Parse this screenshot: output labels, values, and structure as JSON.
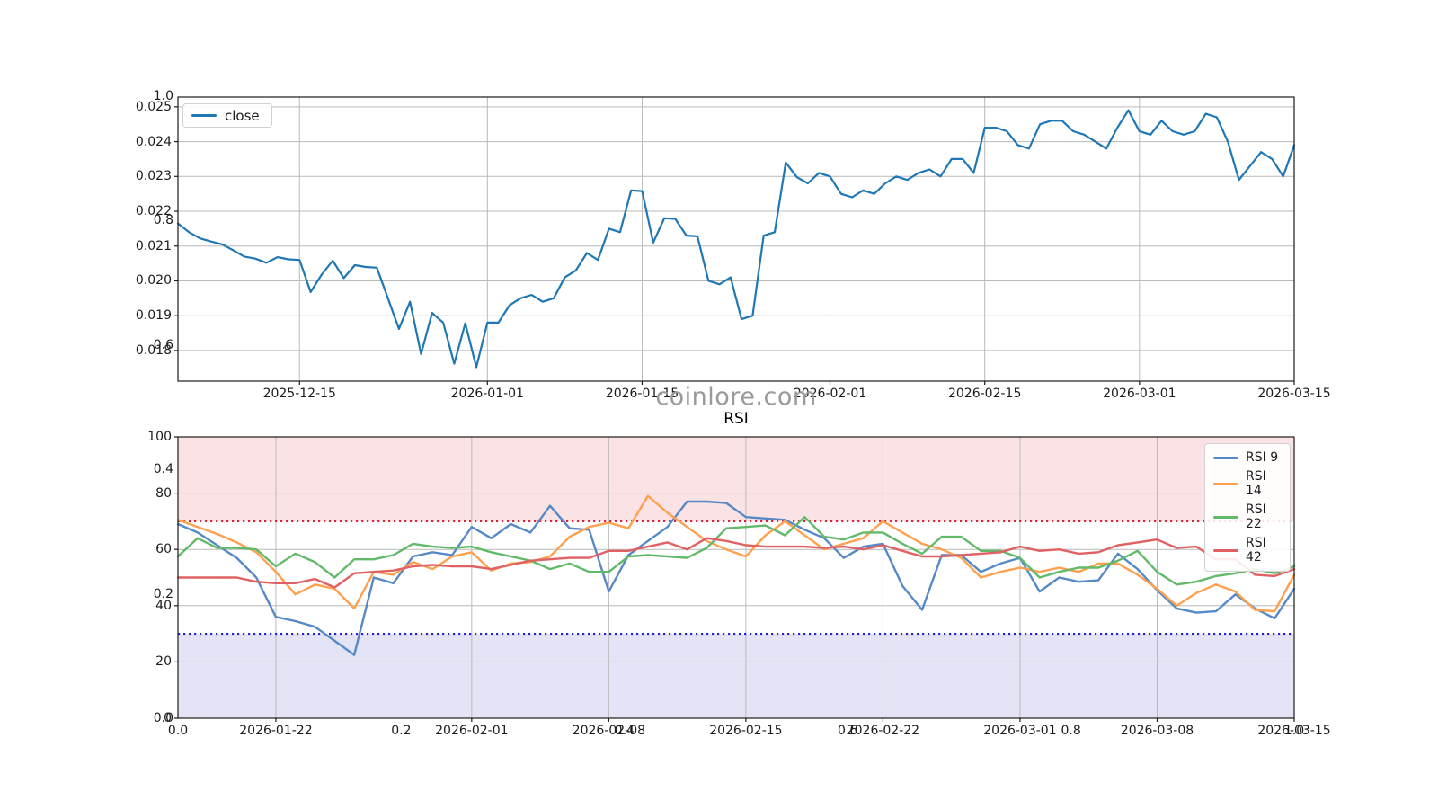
{
  "watermark": "coinlore.com",
  "phantom_axis": {
    "xtick_labels": [
      "0.0",
      "0.2",
      "0.4",
      "0.6",
      "0.8",
      "1.0"
    ],
    "ytick_labels": [
      "1.0",
      "0.8",
      "0.6",
      "0.4",
      "0.2",
      "0.0"
    ]
  },
  "chart_data": [
    {
      "type": "line",
      "name": "price-panel",
      "title": "",
      "start_date": "2025-12-04",
      "frequency": "daily",
      "grid": true,
      "legend_position": "upper left",
      "ylim": [
        0.01712,
        0.02528
      ],
      "ytick_values": [
        0.018,
        0.019,
        0.02,
        0.021,
        0.022,
        0.023,
        0.024,
        0.025
      ],
      "ytick_labels": [
        "0.018",
        "0.019",
        "0.020",
        "0.021",
        "0.022",
        "0.023",
        "0.024",
        "0.025"
      ],
      "xticks": [
        {
          "label": "2025-12-15",
          "i": 11
        },
        {
          "label": "2026-01-01",
          "i": 28
        },
        {
          "label": "2026-01-15",
          "i": 42
        },
        {
          "label": "2026-02-01",
          "i": 59
        },
        {
          "label": "2026-02-15",
          "i": 73
        },
        {
          "label": "2026-03-01",
          "i": 87
        },
        {
          "label": "2026-03-15",
          "i": 101
        }
      ],
      "series": [
        {
          "name": "close",
          "color": "#1f77b4",
          "width": 2.2,
          "values": [
            0.02165,
            0.0214,
            0.02122,
            0.02113,
            0.02105,
            0.02088,
            0.0207,
            0.02064,
            0.02052,
            0.02068,
            0.02062,
            0.0206,
            0.01968,
            0.02018,
            0.02058,
            0.02008,
            0.02045,
            0.0204,
            0.02038,
            0.0195,
            0.01862,
            0.0194,
            0.0179,
            0.01908,
            0.0188,
            0.01762,
            0.01878,
            0.01752,
            0.0188,
            0.0188,
            0.0193,
            0.0195,
            0.0196,
            0.0194,
            0.0195,
            0.0201,
            0.0203,
            0.0208,
            0.0206,
            0.0215,
            0.0214,
            0.0226,
            0.02258,
            0.0211,
            0.0218,
            0.02178,
            0.0213,
            0.02128,
            0.02,
            0.0199,
            0.0201,
            0.0189,
            0.019,
            0.0213,
            0.0214,
            0.0234,
            0.02298,
            0.0228,
            0.0231,
            0.023,
            0.0225,
            0.0224,
            0.0226,
            0.0225,
            0.0228,
            0.023,
            0.0229,
            0.0231,
            0.0232,
            0.023,
            0.0235,
            0.0235,
            0.0231,
            0.0244,
            0.0244,
            0.0243,
            0.0239,
            0.0238,
            0.0245,
            0.0246,
            0.0246,
            0.0243,
            0.0242,
            0.024,
            0.0238,
            0.0244,
            0.0249,
            0.0243,
            0.0242,
            0.0246,
            0.0243,
            0.0242,
            0.0243,
            0.0248,
            0.0247,
            0.024,
            0.0229,
            0.0233,
            0.0237,
            0.0235,
            0.023,
            0.0239
          ]
        }
      ]
    },
    {
      "type": "line",
      "name": "rsi-panel",
      "title": "RSI",
      "start_date": "2026-01-17",
      "frequency": "daily",
      "grid": true,
      "legend_position": "upper right",
      "ylim": [
        0,
        100
      ],
      "ytick_values": [
        0,
        20,
        40,
        60,
        80,
        100
      ],
      "ytick_labels": [
        "0",
        "20",
        "40",
        "60",
        "80",
        "100"
      ],
      "xticks": [
        {
          "label": "2026-01-22",
          "i": 5
        },
        {
          "label": "2026-02-01",
          "i": 15
        },
        {
          "label": "2026-02-08",
          "i": 22
        },
        {
          "label": "2026-02-15",
          "i": 29
        },
        {
          "label": "2026-02-22",
          "i": 36
        },
        {
          "label": "2026-03-01",
          "i": 43
        },
        {
          "label": "2026-03-08",
          "i": 50
        },
        {
          "label": "2026-03-15",
          "i": 57
        }
      ],
      "bands": [
        {
          "name": "overbought-zone",
          "from": 70,
          "to": 100,
          "color": "#fbe2e4"
        },
        {
          "name": "oversold-zone",
          "from": 0,
          "to": 30,
          "color": "#e5e4f6"
        }
      ],
      "hlines": [
        {
          "name": "overbought-line",
          "level": 70,
          "color": "#d8253c"
        },
        {
          "name": "oversold-line",
          "level": 30,
          "color": "#2323cc"
        }
      ],
      "series": [
        {
          "name": "RSI 9",
          "color": "#5789c7",
          "width": 2.4,
          "values": [
            69,
            66,
            61.5,
            57,
            50,
            36,
            34.5,
            32.5,
            27.5,
            22.5,
            50,
            48,
            57.5,
            59,
            58,
            68,
            64,
            69,
            66,
            75.5,
            67.5,
            67,
            45,
            58,
            63,
            68,
            77,
            77,
            76.5,
            71.5,
            71,
            70.5,
            67,
            64,
            57,
            61,
            62,
            47,
            38.5,
            58,
            58,
            52,
            55,
            57,
            45,
            50,
            48.5,
            49,
            58.5,
            53,
            45.5,
            39,
            37.5,
            38,
            44,
            39,
            35.5,
            46
          ]
        },
        {
          "name": "RSI 14",
          "color": "#ffa04e",
          "width": 2.4,
          "values": [
            70.5,
            68,
            65.5,
            62.5,
            59,
            52,
            44,
            47.5,
            46,
            39,
            52,
            51,
            55.5,
            53,
            57.5,
            59,
            52.5,
            55,
            55.5,
            57.5,
            64.5,
            68,
            69.5,
            67.5,
            79,
            73,
            68,
            63,
            60,
            57.5,
            65,
            70,
            65,
            60,
            62,
            64,
            70,
            66,
            62,
            60,
            57,
            50,
            52,
            53.5,
            52,
            53.5,
            52,
            55,
            55,
            51,
            46,
            40,
            44.5,
            47.5,
            45,
            38.5,
            38,
            51
          ]
        },
        {
          "name": "RSI 22",
          "color": "#62b96a",
          "width": 2.4,
          "values": [
            57.5,
            64,
            60.5,
            60.5,
            60,
            54,
            58.5,
            55.5,
            50,
            56.5,
            56.5,
            58,
            62,
            61,
            60.5,
            61,
            59,
            57.5,
            56,
            53,
            55,
            52,
            52,
            57.5,
            58,
            57.5,
            57,
            60.5,
            67.5,
            68,
            68.5,
            65,
            71.5,
            64.5,
            63.5,
            66,
            66,
            62,
            58.5,
            64.5,
            64.5,
            59.5,
            59.5,
            57,
            50,
            52,
            53.5,
            53.5,
            56,
            59.5,
            52,
            47.5,
            48.5,
            50.5,
            51.5,
            53,
            51.5,
            54
          ]
        },
        {
          "name": "RSI 42",
          "color": "#e06163",
          "width": 2.4,
          "values": [
            50,
            50,
            50,
            50,
            48.5,
            48,
            48,
            49.5,
            46.5,
            51.5,
            52,
            52.5,
            54,
            54.5,
            54,
            54,
            53,
            54.5,
            56,
            56.5,
            57,
            57,
            59.5,
            59.5,
            61,
            62.5,
            60,
            64,
            63,
            61.5,
            61,
            61,
            61,
            60.5,
            61,
            60,
            61.5,
            59.5,
            57.5,
            57.5,
            58,
            58.5,
            59,
            61,
            59.5,
            60,
            58.5,
            59,
            61.5,
            62.5,
            63.5,
            60.5,
            61,
            56.5,
            56.5,
            51,
            50.5,
            53
          ]
        }
      ]
    }
  ]
}
